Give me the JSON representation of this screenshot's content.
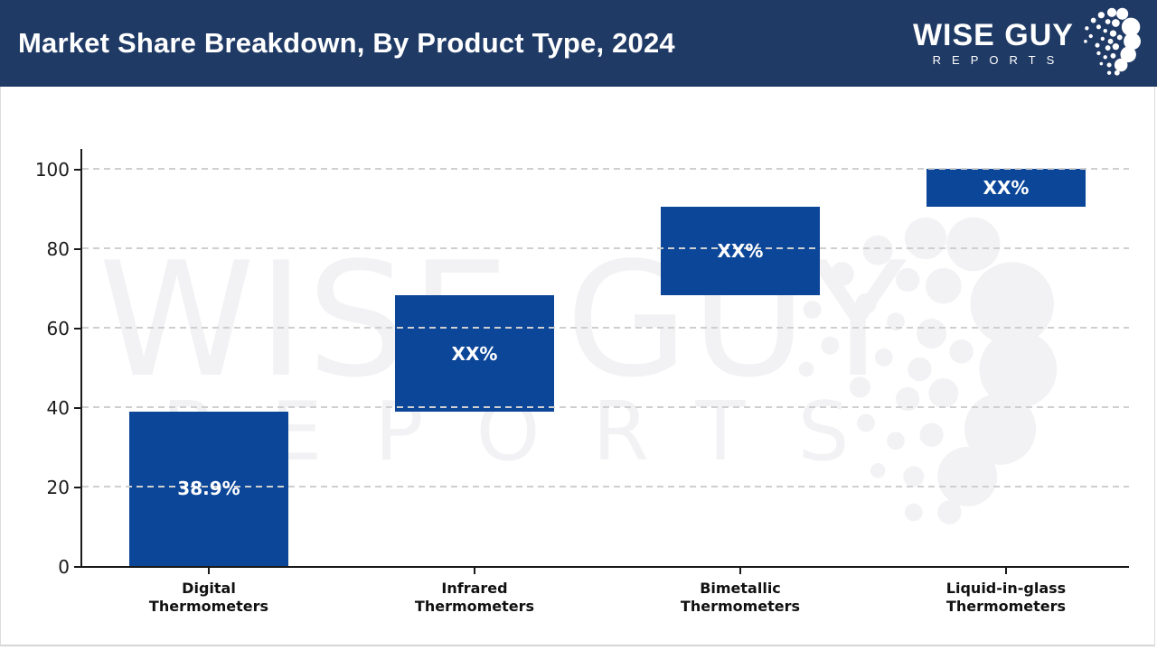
{
  "header": {
    "title": "Market Share Breakdown, By Product Type, 2024",
    "logo": {
      "brand": "WISE GUY",
      "sub": "REPORTS"
    }
  },
  "watermark": {
    "line1": "WISE GUY",
    "line2": "REPORTS"
  },
  "colors": {
    "header_bg": "#203a66",
    "bar": "#0c4699",
    "grid": "#cfcfcf",
    "axis": "#1a1a1a",
    "watermark": "#f2f2f4"
  },
  "chart_data": {
    "type": "bar",
    "subtype": "waterfall",
    "title": "Market Share Breakdown, By Product Type, 2024",
    "categories": [
      "Digital\nThermometers",
      "Infrared\nThermometers",
      "Bimetallic\nThermometers",
      "Liquid-in-glass\nThermometers"
    ],
    "segments": [
      {
        "category": "Digital Thermometers",
        "start": 0,
        "end": 38.9,
        "label": "38.9%"
      },
      {
        "category": "Infrared Thermometers",
        "start": 38.9,
        "end": 68.1,
        "label": "XX%"
      },
      {
        "category": "Bimetallic Thermometers",
        "start": 68.1,
        "end": 90.4,
        "label": "XX%"
      },
      {
        "category": "Liquid-in-glass Thermometers",
        "start": 90.4,
        "end": 100,
        "label": "XX%"
      }
    ],
    "ylim": [
      0,
      100
    ],
    "yticks": [
      0,
      20,
      40,
      60,
      80,
      100
    ],
    "xlabel": "",
    "ylabel": "",
    "grid": "horizontal-dashed",
    "legend": "none"
  }
}
